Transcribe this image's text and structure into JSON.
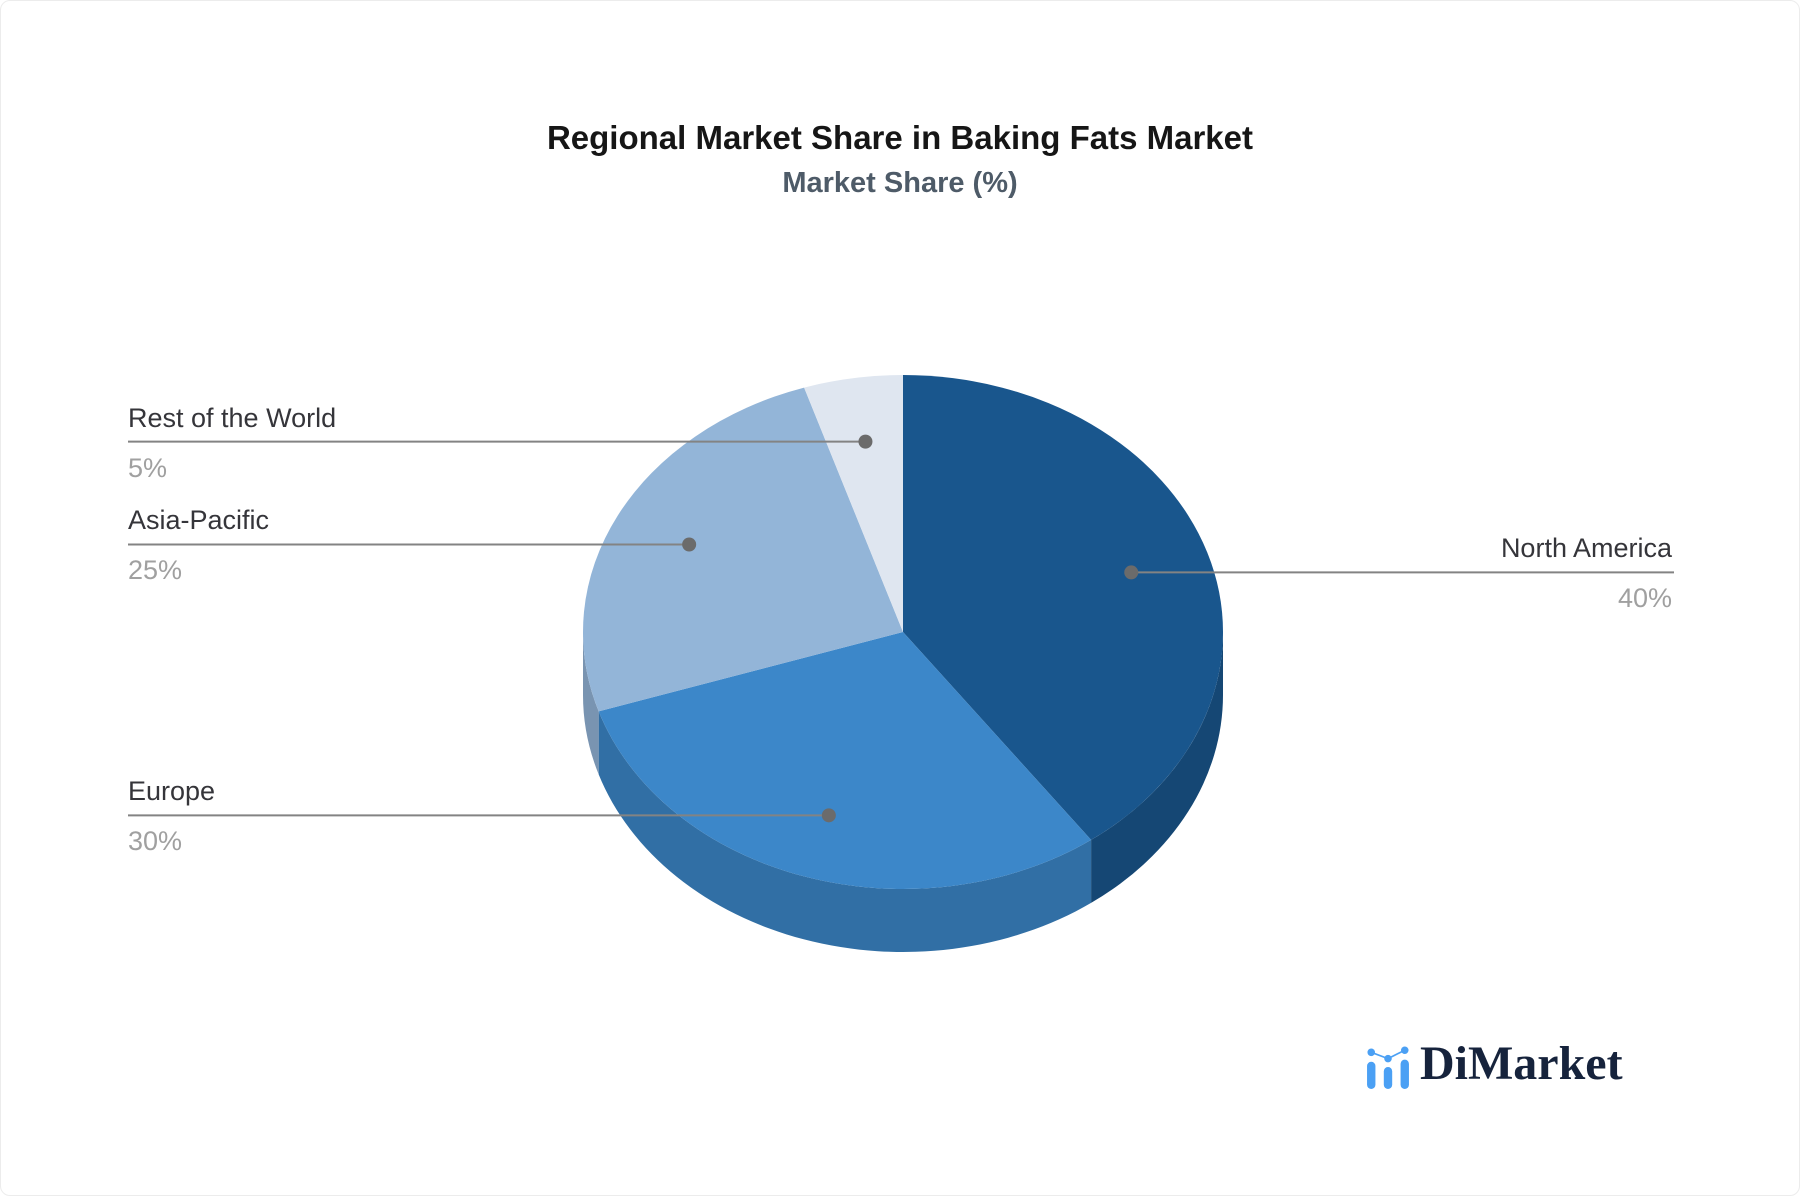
{
  "chart_data": {
    "type": "pie",
    "title": "Regional Market Share in Baking Fats Market",
    "subtitle": "Market Share (%)",
    "unit": "%",
    "categories": [
      "North America",
      "Europe",
      "Asia-Pacific",
      "Rest of the World"
    ],
    "values": [
      40,
      30,
      25,
      5
    ],
    "percent_labels": [
      "40%",
      "30%",
      "25%",
      "5%"
    ],
    "colors": [
      "#19568D",
      "#3C87C9",
      "#93B5D8",
      "#DFE6F0"
    ],
    "style_3d": true,
    "start_angle_deg": 0,
    "direction": "clockwise",
    "legend_position": "none"
  },
  "callouts": {
    "line_color": "#838383",
    "dot_color": "#6B6B6B",
    "label_color": "#35353A",
    "percent_color": "#A0A0A0"
  },
  "text_colors": {
    "title": "#161616",
    "subtitle": "#4E5B68"
  },
  "branding": {
    "logo_text": "DiMarket",
    "text_color": "#16233C",
    "icon_color": "#4BA0F4"
  }
}
